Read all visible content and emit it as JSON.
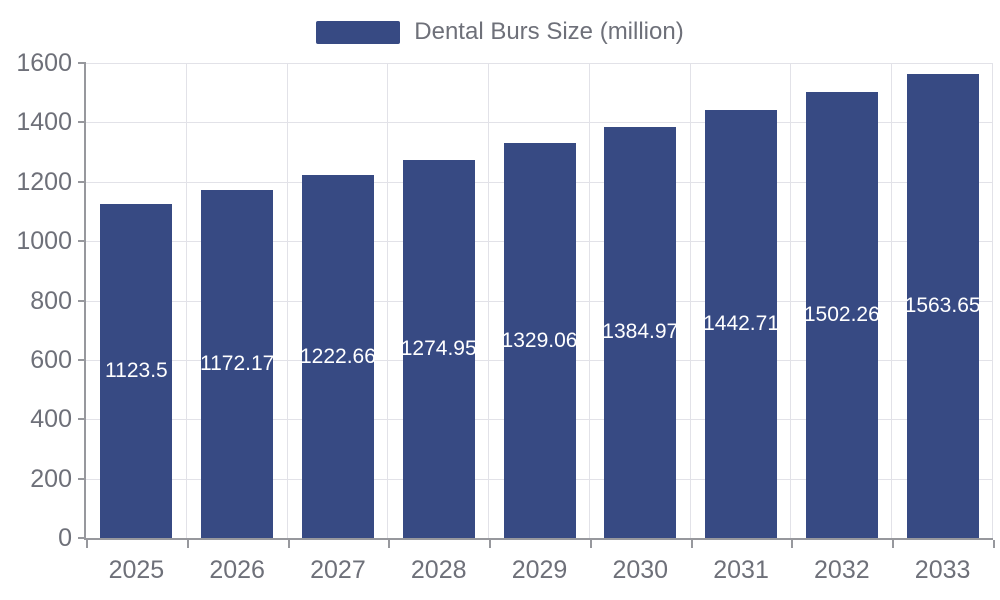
{
  "legend": {
    "series_label": "Dental Burs Size (million)"
  },
  "colors": {
    "bar": "#374a83",
    "grid_line": "#e2e2e8",
    "axis_line": "#97989d",
    "axis_text": "#6e7079",
    "legend_text": "#6e7079",
    "bar_label_text": "#ffffff",
    "background": "#ffffff"
  },
  "chart_data": {
    "type": "bar",
    "title": "Dental Burs Size (million)",
    "categories": [
      "2025",
      "2026",
      "2027",
      "2028",
      "2029",
      "2030",
      "2031",
      "2032",
      "2033"
    ],
    "values": [
      1123.5,
      1172.17,
      1222.66,
      1274.95,
      1329.06,
      1384.97,
      1442.71,
      1502.26,
      1563.65
    ],
    "value_labels": [
      "1123.5",
      "1172.17",
      "1222.66",
      "1274.95",
      "1329.06",
      "1384.97",
      "1442.71",
      "1502.26",
      "1563.65"
    ],
    "series": [
      {
        "name": "Dental Burs Size (million)",
        "values": [
          1123.5,
          1172.17,
          1222.66,
          1274.95,
          1329.06,
          1384.97,
          1442.71,
          1502.26,
          1563.65
        ]
      }
    ],
    "xlabel": "",
    "ylabel": "",
    "ylim": [
      0,
      1600
    ],
    "yticks": [
      0,
      200,
      400,
      600,
      800,
      1000,
      1200,
      1400,
      1600
    ],
    "grid": true,
    "legend_position": "top-center",
    "bar_label_position": "center-of-bar"
  }
}
